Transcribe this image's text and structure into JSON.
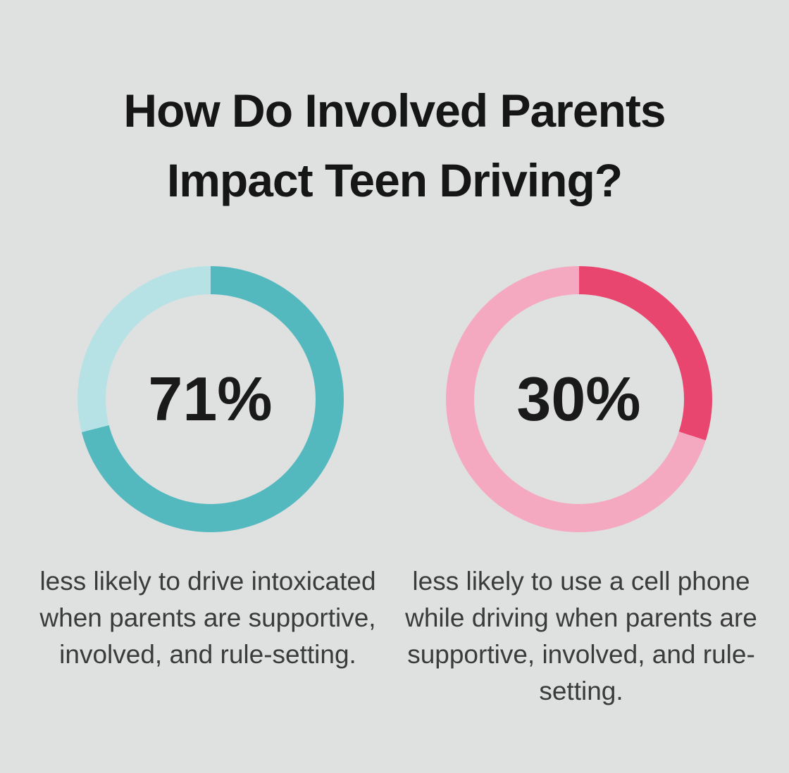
{
  "background_color": "#dfe0e0",
  "title": "How Do Involved Parents Impact Teen Driving?",
  "chart_data": [
    {
      "type": "donut",
      "value": 71,
      "label": "71%",
      "segment_color": "#54b9bf",
      "track_color": "#b7e2e5",
      "start_angle_deg": 0,
      "direction": "clockwise",
      "caption": "less likely to drive intoxicated when parents are supportive, involved, and rule-setting."
    },
    {
      "type": "donut",
      "value": 30,
      "label": "30%",
      "segment_color": "#e8466f",
      "track_color": "#f4a9c0",
      "start_angle_deg": 0,
      "direction": "clockwise",
      "caption": "less likely to use a cell phone while driving when parents are supportive, involved, and rule-setting."
    }
  ]
}
